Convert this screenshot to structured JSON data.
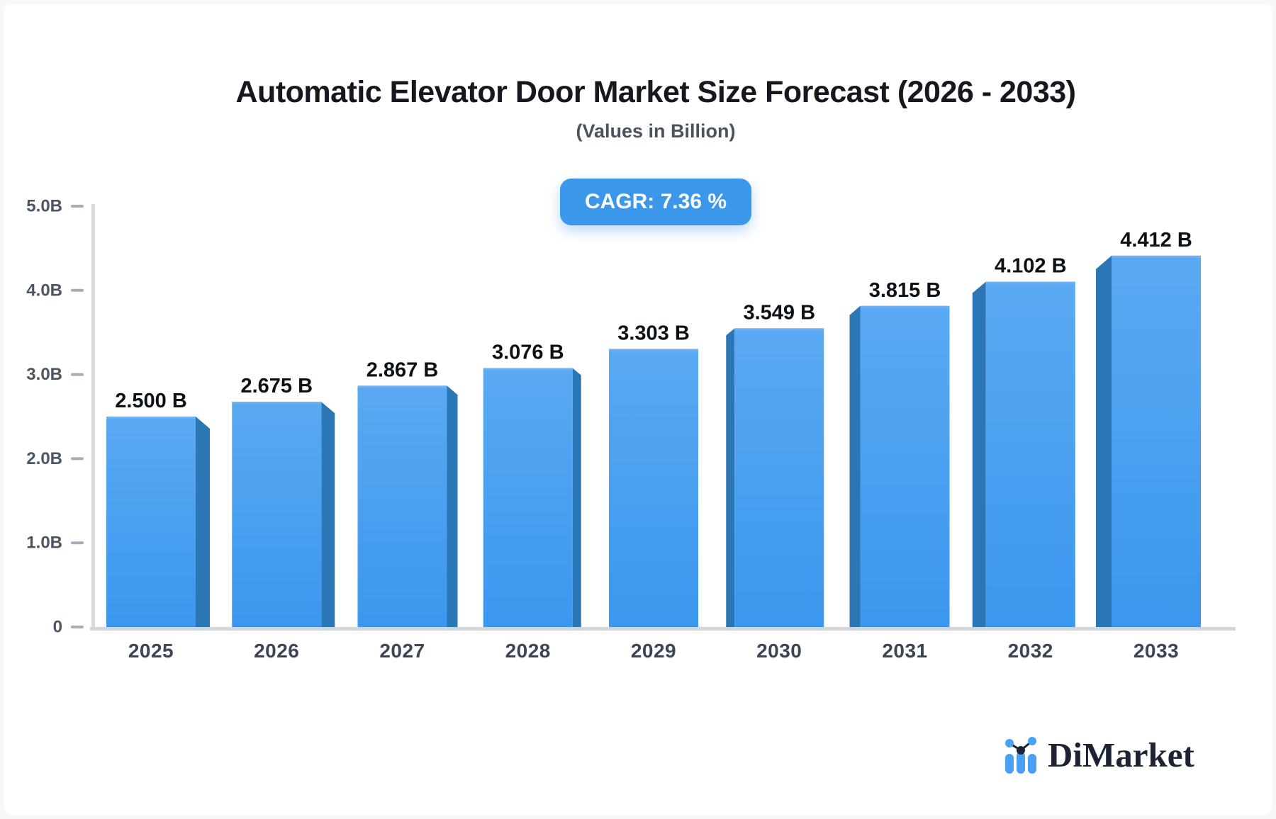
{
  "header": {
    "title": "Automatic Elevator Door Market Size Forecast (2026 - 2033)",
    "subtitle": "(Values in Billion)",
    "cagr_label": "CAGR: 7.36 %"
  },
  "chart_data": {
    "type": "bar",
    "title": "Automatic Elevator Door Market Size Forecast (2026 - 2033)",
    "subtitle": "(Values in Billion)",
    "unit": "Billion",
    "cagr": "7.36 %",
    "categories": [
      "2025",
      "2026",
      "2027",
      "2028",
      "2029",
      "2030",
      "2031",
      "2032",
      "2033"
    ],
    "values": [
      2.5,
      2.675,
      2.867,
      3.076,
      3.303,
      3.549,
      3.815,
      4.102,
      4.412
    ],
    "value_labels": [
      "2.500 B",
      "2.675 B",
      "2.867 B",
      "3.076 B",
      "3.303 B",
      "3.549 B",
      "3.815 B",
      "4.102 B",
      "4.412 B"
    ],
    "ylim": [
      0,
      5
    ],
    "y_ticks": [
      {
        "value": 0,
        "label": "0"
      },
      {
        "value": 1,
        "label": "1.0B"
      },
      {
        "value": 2,
        "label": "2.0B"
      },
      {
        "value": 3,
        "label": "3.0B"
      },
      {
        "value": 4,
        "label": "4.0B"
      },
      {
        "value": 5,
        "label": "5.0B"
      }
    ],
    "grid": false,
    "legend": "none",
    "bar_style": "3d-center-perspective",
    "colors": {
      "bar_face_top": "#5aa9f2",
      "bar_face_bottom": "#3b97ee",
      "bar_top_edge": "#6fb0f3",
      "bar_side": "#2b76b5",
      "axis_line": "#d8dadd",
      "baseline": "#d2d6da",
      "tick_dash": "#a6adb7",
      "tick_label": "#4b5563",
      "category_label": "#3b4556",
      "value_label": "#0c1116",
      "badge_bg": "#3b97ea",
      "badge_text": "#ffffff",
      "title": "#15181e",
      "subtitle": "#4a5260"
    }
  },
  "logo": {
    "text": "DiMarket",
    "icon": "bar-chart-trend-icon",
    "bar_color": "#4aa0f5",
    "accent_color": "#1b2335"
  }
}
